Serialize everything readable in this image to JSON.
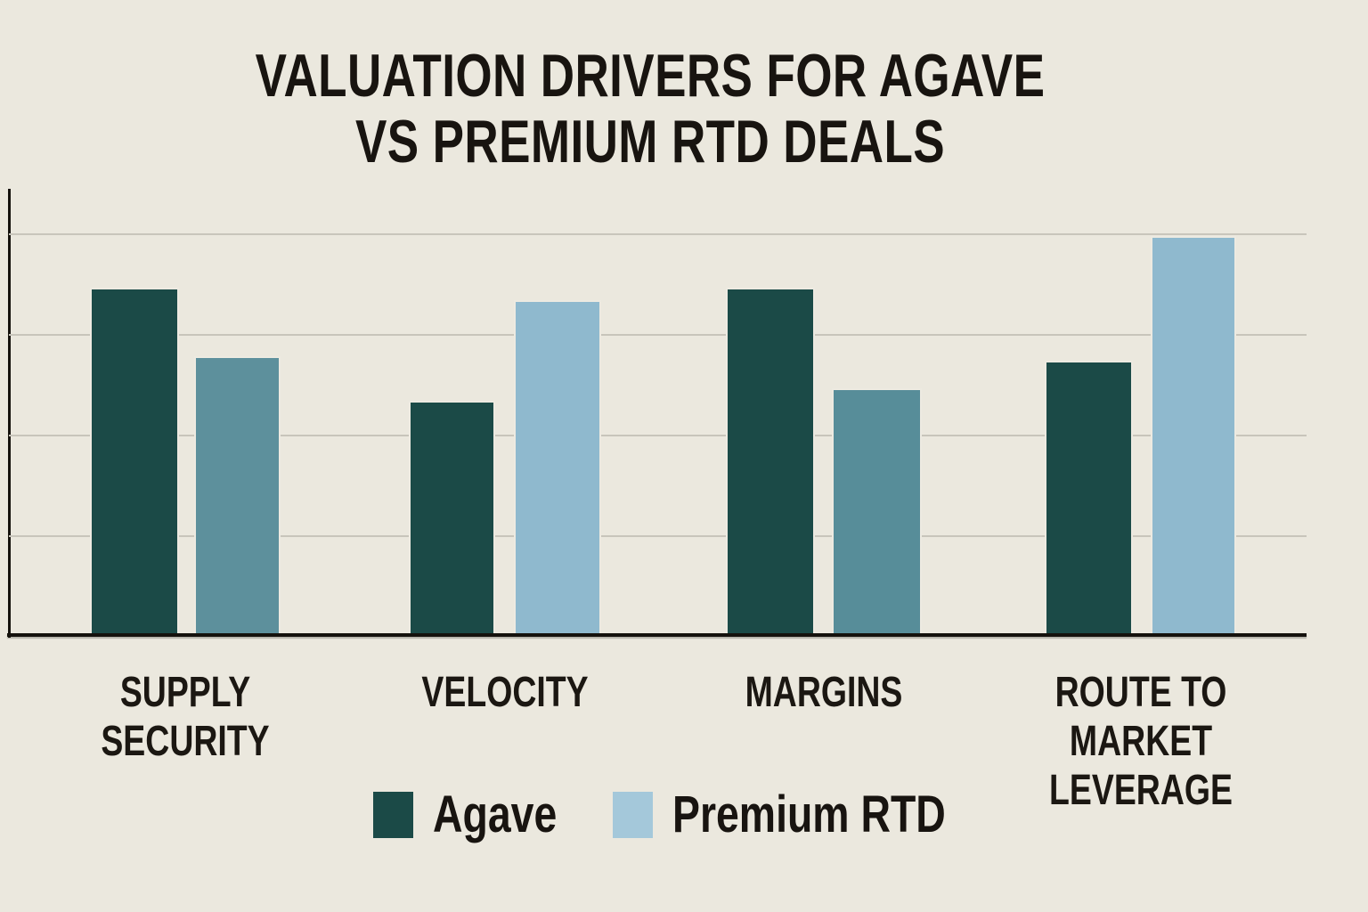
{
  "title": {
    "line1": "VALUATION DRIVERS FOR AGAVE",
    "line2": "VS PREMIUM RTD DEALS"
  },
  "legend": [
    {
      "label": "Agave",
      "color": "#1b4a47"
    },
    {
      "label": "Premium RTD",
      "color": "#a4c8da"
    }
  ],
  "colors": {
    "background": "#ebe8de",
    "gridline": "#c8c5bb",
    "axis": "#15120d",
    "text": "#181410",
    "agave_bar": "#1b4a47",
    "premium_rtd_teal": "#5b8f9b",
    "premium_rtd_light_blue": "#8fb9ce"
  },
  "chart_data": {
    "type": "bar",
    "title": "Valuation Drivers for Agave vs Premium RTD Deals",
    "categories": [
      "Supply Security",
      "Velocity",
      "Margins",
      "Route to Market Leverage"
    ],
    "category_label_lines": [
      [
        "SUPPLY",
        "SECURITY"
      ],
      [
        "VELOCITY"
      ],
      [
        "MARGINS"
      ],
      [
        "ROUTE TO MARKET",
        "LEVERAGE"
      ]
    ],
    "series": [
      {
        "name": "Agave",
        "values": [
          86,
          58,
          86,
          68
        ],
        "bar_colors": [
          "#1b4a47",
          "#1b4a47",
          "#1b4a47",
          "#1b4a47"
        ]
      },
      {
        "name": "Premium RTD",
        "values": [
          69,
          83,
          61,
          99
        ],
        "bar_colors": [
          "#5d909c",
          "#8fb9ce",
          "#578d99",
          "#8fb9ce"
        ]
      }
    ],
    "xlabel": "",
    "ylabel": "",
    "ylim": [
      0,
      100
    ],
    "gridlines_at": [
      25,
      50,
      75,
      100
    ],
    "grid": true,
    "y_tick_labels_shown": false,
    "legend_position": "bottom"
  }
}
